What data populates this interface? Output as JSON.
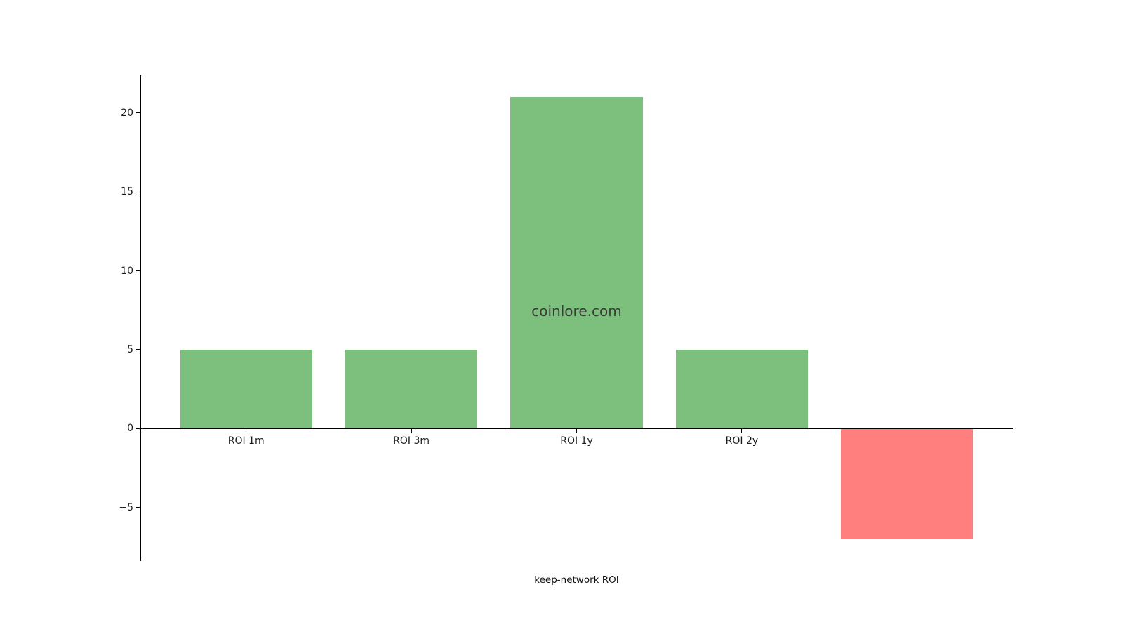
{
  "chart_data": {
    "type": "bar",
    "title": "keep-network ROI",
    "categories": [
      "ROI 1m",
      "ROI 3m",
      "ROI 1y",
      "ROI 2y",
      ""
    ],
    "values": [
      5,
      5,
      21,
      5,
      -7
    ],
    "bar_colors": [
      "#7dbf7d",
      "#7dbf7d",
      "#7dbf7d",
      "#7dbf7d",
      "#ff7f7f"
    ],
    "positive_color": "#7dbf7d",
    "negative_color": "#ff7f7f",
    "xlabel": "",
    "ylabel": "",
    "yticks": [
      20,
      15,
      10,
      5,
      0,
      -5
    ],
    "ytick_labels": [
      "20",
      "15",
      "10",
      "5",
      "0",
      "−5"
    ],
    "ylim": [
      -8.4,
      22.4
    ],
    "xlim": [
      -0.64,
      4.64
    ],
    "bar_width": 0.8,
    "grid": false,
    "legend": false,
    "axis_color": "#000000",
    "tick_text_color": "#1a1a1a",
    "watermark": {
      "text": "coinlore.com",
      "color": "#3b3b3b"
    }
  }
}
